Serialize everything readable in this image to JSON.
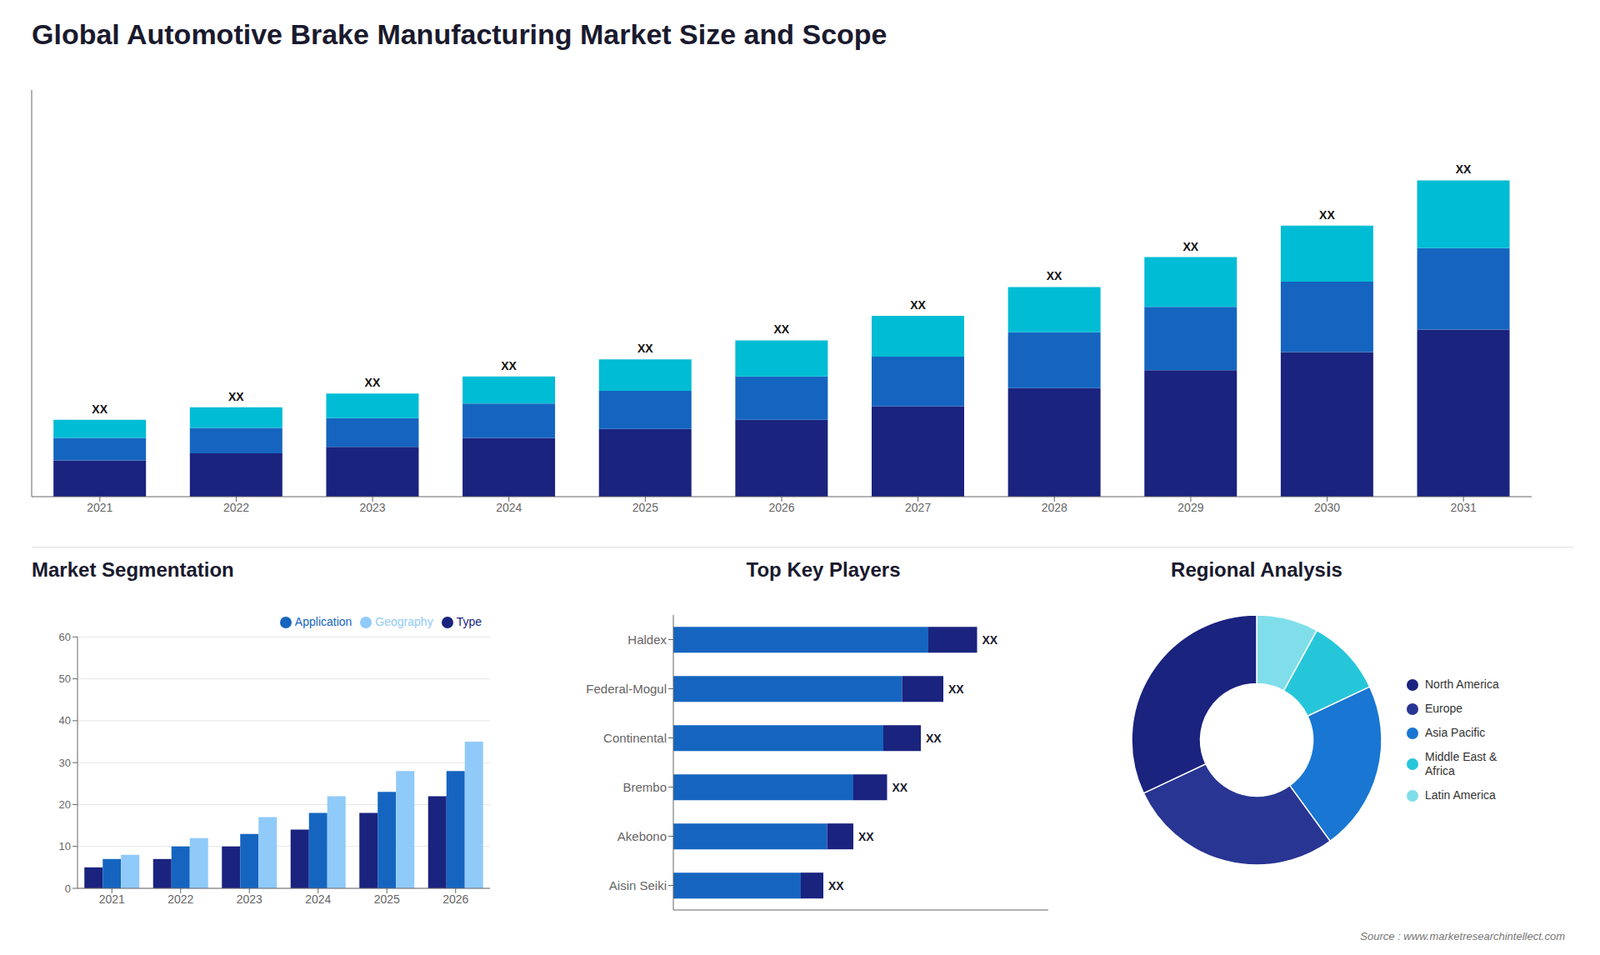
{
  "title": "Global Automotive Brake Manufacturing Market Size and Scope",
  "annotations": [
    "Source : www.marketresearchintellect.com"
  ],
  "chart_data": [
    {
      "type": "bar",
      "stacked": true,
      "categories": [
        "2021",
        "2022",
        "2023",
        "2024",
        "2025",
        "2026",
        "2027",
        "2028",
        "2029",
        "2030",
        "2031"
      ],
      "series": [
        {
          "color": "#1a237e",
          "values": [
            4.0,
            4.8,
            5.5,
            6.5,
            7.5,
            8.5,
            10.0,
            12.0,
            14.0,
            16.0,
            18.5
          ]
        },
        {
          "color": "#1565c0",
          "values": [
            2.5,
            2.8,
            3.2,
            3.8,
            4.2,
            4.8,
            5.5,
            6.2,
            7.0,
            7.8,
            9.0
          ]
        },
        {
          "color": "#00bcd4",
          "values": [
            2.0,
            2.3,
            2.7,
            3.0,
            3.5,
            4.0,
            4.5,
            5.0,
            5.5,
            6.2,
            7.5
          ]
        }
      ],
      "ylim": [
        0,
        45
      ],
      "tick_labels": "x",
      "grid": false,
      "annotations": [
        "XX",
        "XX",
        "XX",
        "XX",
        "XX",
        "XX",
        "XX",
        "XX",
        "XX",
        "XX",
        "XX"
      ]
    },
    {
      "type": "bar",
      "title": "Market Segmentation",
      "categories": [
        "2021",
        "2022",
        "2023",
        "2024",
        "2025",
        "2026"
      ],
      "series": [
        {
          "name": "Type",
          "color": "#1a237e",
          "values": [
            5,
            7,
            10,
            14,
            18,
            22
          ]
        },
        {
          "name": "Application",
          "color": "#1565c0",
          "values": [
            7,
            10,
            13,
            18,
            23,
            28
          ]
        },
        {
          "name": "Geography",
          "color": "#90caf9",
          "values": [
            8,
            12,
            17,
            22,
            28,
            35
          ]
        }
      ],
      "ylim": [
        0,
        60
      ],
      "yticks": [
        0,
        10,
        20,
        30,
        40,
        50,
        60
      ],
      "grid": true,
      "legend": "upper right"
    },
    {
      "type": "bar",
      "title": "Top Key Players",
      "orientation": "horizontal",
      "stacked": true,
      "categories": [
        "Haldex",
        "Federal-Mogul",
        "Continental",
        "Brembo",
        "Akebono",
        "Aisin Seiki"
      ],
      "series": [
        {
          "color": "#1565c0",
          "values": [
            0.68,
            0.61,
            0.56,
            0.48,
            0.41,
            0.34
          ]
        },
        {
          "color": "#1a237e",
          "values": [
            0.13,
            0.11,
            0.1,
            0.09,
            0.07,
            0.06
          ]
        }
      ],
      "xlim": [
        0,
        1.0
      ],
      "tick_labels": "y",
      "grid": false,
      "annotations": [
        "XX",
        "XX",
        "XX",
        "XX",
        "XX",
        "XX"
      ]
    },
    {
      "type": "pie",
      "title": "Regional Analysis",
      "categories": [
        "Latin America",
        "Middle East &\nAfrica",
        "Asia Pacific",
        "Europe",
        "North America"
      ],
      "values": [
        8,
        10,
        22,
        28,
        32
      ],
      "colors": [
        "#80deea",
        "#26c6da",
        "#1976d2",
        "#283593",
        "#1a237e"
      ],
      "legend": "right"
    }
  ]
}
